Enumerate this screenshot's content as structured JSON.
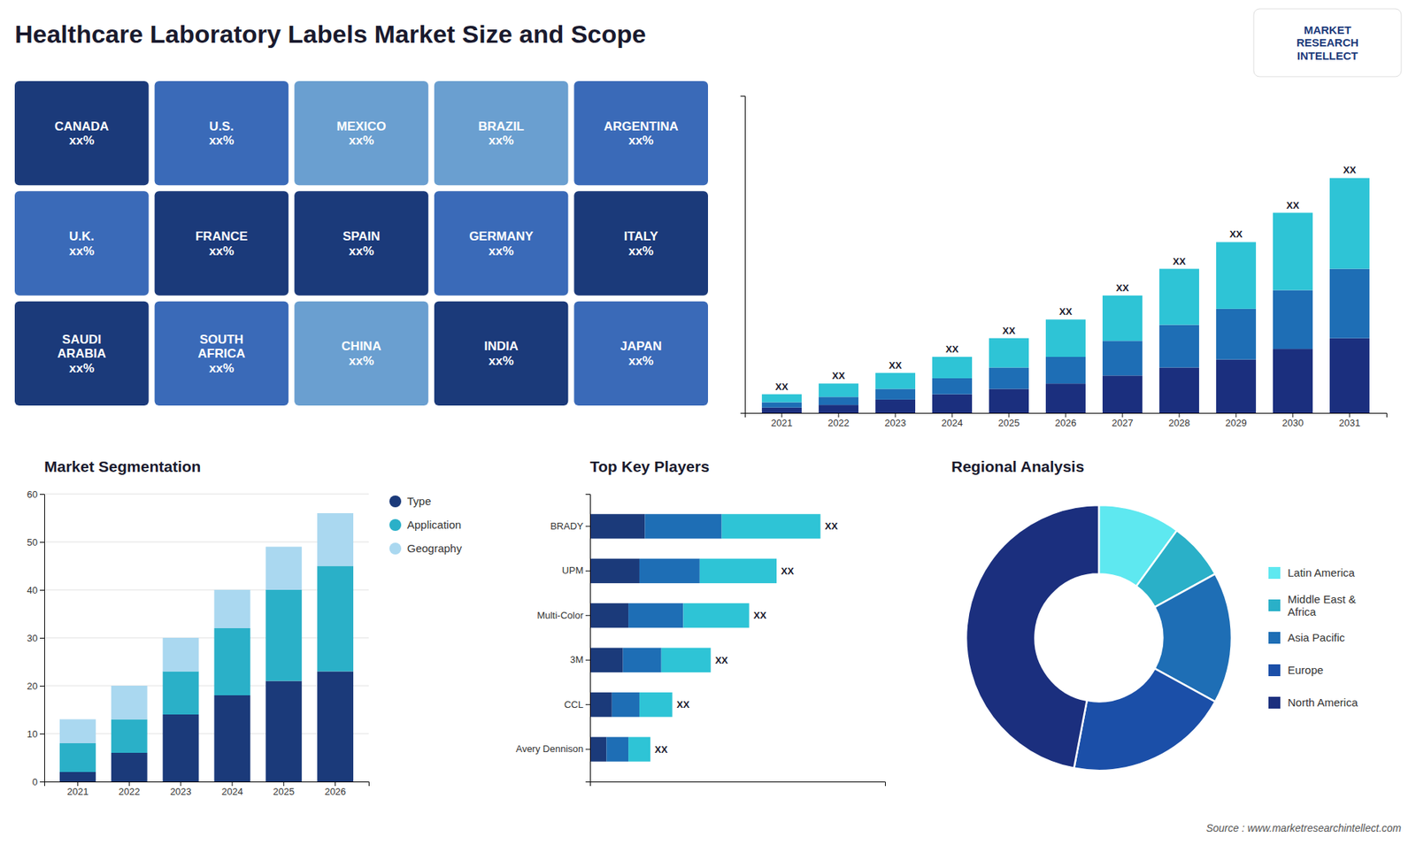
{
  "chart_data": [
    {
      "type": "map",
      "categories": [
        "CANADA\nxx%",
        "U.S.\nxx%",
        "MEXICO\nxx%",
        "BRAZIL\nxx%",
        "ARGENTINA\nxx%",
        "U.K.\nxx%",
        "FRANCE\nxx%",
        "SPAIN\nxx%",
        "GERMANY\nxx%",
        "ITALY\nxx%",
        "SAUDI\nARABIA\nxx%",
        "SOUTH\nAFRICA\nxx%",
        "CHINA\nxx%",
        "INDIA\nxx%",
        "JAPAN\nxx%"
      ],
      "colors": [
        "#1b3a7a",
        "#3a6ab8",
        "#6a9fd0",
        "#6a9fd0",
        "#3a6ab8",
        "#3a6ab8",
        "#1b3a7a",
        "#1b3a7a",
        "#3a6ab8",
        "#1b3a7a",
        "#1b3a7a",
        "#3a6ab8",
        "#6a9fd0",
        "#1b3a7a",
        "#3a6ab8"
      ]
    },
    {
      "type": "bar",
      "title": "Healthcare Laboratory Labels Market Size and Scope",
      "stacked": true,
      "categories": [
        "2021",
        "2022",
        "2023",
        "2024",
        "2025",
        "2026",
        "2027",
        "2028",
        "2029",
        "2030",
        "2031"
      ],
      "series": [
        {
          "color": "#1b2f7e",
          "values": [
            2,
            3,
            5,
            7,
            9,
            11,
            14,
            17,
            20,
            24,
            28
          ]
        },
        {
          "color": "#1e6eb5",
          "values": [
            2,
            3,
            4,
            6,
            8,
            10,
            13,
            16,
            19,
            22,
            26
          ]
        },
        {
          "color": "#2ec4d6",
          "values": [
            3,
            5,
            6,
            8,
            11,
            14,
            17,
            21,
            25,
            29,
            34
          ],
          "value_labels": [
            "XX",
            "XX",
            "XX",
            "XX",
            "XX",
            "XX",
            "XX",
            "XX",
            "XX",
            "XX",
            "XX"
          ]
        }
      ],
      "ylim": [
        0,
        118.8
      ],
      "tick_labels": "x",
      "data_labels": true,
      "annotations": [
        "MARKET\nRESEARCH\nINTELLECT"
      ]
    },
    {
      "type": "bar",
      "title": "Market Segmentation",
      "stacked": true,
      "categories": [
        "2021",
        "2022",
        "2023",
        "2024",
        "2025",
        "2026"
      ],
      "series": [
        {
          "name": "Type",
          "color": "#1b3a7a",
          "values": [
            2,
            6,
            14,
            18,
            21,
            23
          ]
        },
        {
          "name": "Application",
          "color": "#2ab0c8",
          "values": [
            6,
            7,
            9,
            14,
            19,
            22
          ]
        },
        {
          "name": "Geography",
          "color": "#aad8f0",
          "values": [
            5,
            7,
            7,
            8,
            9,
            11
          ]
        }
      ],
      "ylim": [
        0,
        60
      ],
      "yticks": [
        0,
        10,
        20,
        30,
        40,
        50,
        60
      ],
      "grid": true,
      "legend": "right"
    },
    {
      "type": "bar",
      "orientation": "horizontal",
      "title": "Top Key Players",
      "stacked": true,
      "categories": [
        "BRADY",
        "UPM",
        "Multi-Color",
        "3M",
        "CCL",
        "Avery Dennison"
      ],
      "series": [
        {
          "color": "#1b3a7a",
          "values": [
            10,
            9,
            7,
            6,
            4,
            3
          ]
        },
        {
          "color": "#1e6eb5",
          "values": [
            14,
            11,
            10,
            7,
            5,
            4
          ]
        },
        {
          "color": "#2ec4d6",
          "values": [
            18,
            14,
            12,
            9,
            6,
            4
          ],
          "value_labels": [
            "XX",
            "XX",
            "XX",
            "XX",
            "XX",
            "XX"
          ]
        }
      ],
      "xlim": [
        0,
        53.76
      ],
      "tick_labels": "y",
      "data_labels": true
    },
    {
      "type": "donut",
      "title": "Regional Analysis",
      "categories": [
        "Latin America",
        "Middle East &\nAfrica",
        "Asia Pacific",
        "Europe",
        "North America"
      ],
      "values": [
        10,
        7,
        16,
        20,
        47
      ],
      "colors": [
        "#5ee8f0",
        "#2ab0c8",
        "#1e6eb5",
        "#1b4fa8",
        "#1b2f7e"
      ],
      "legend": "right",
      "annotations": [
        "Source : www.marketresearchintellect.com"
      ]
    }
  ]
}
